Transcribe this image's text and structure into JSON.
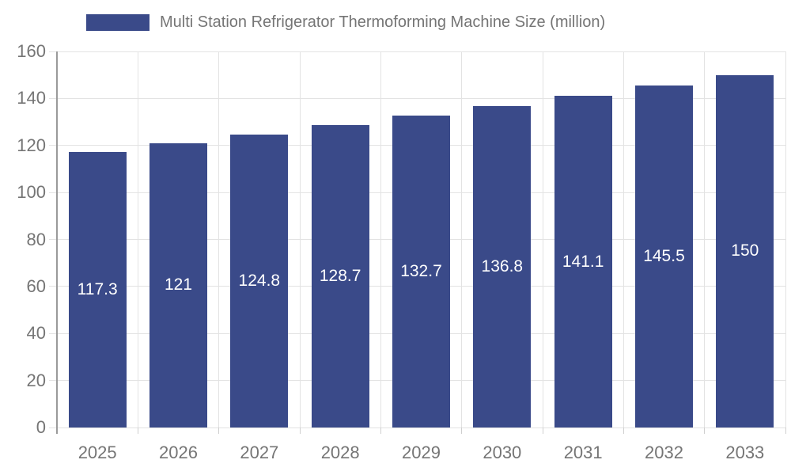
{
  "legend": {
    "label": "Multi Station Refrigerator Thermoforming Machine Size (million)"
  },
  "chart_data": {
    "type": "bar",
    "title": "Multi Station Refrigerator Thermoforming Machine Size (million)",
    "categories": [
      "2025",
      "2026",
      "2027",
      "2028",
      "2029",
      "2030",
      "2031",
      "2032",
      "2033"
    ],
    "values": [
      117.3,
      121,
      124.8,
      128.7,
      132.7,
      136.8,
      141.1,
      145.5,
      150
    ],
    "value_labels": [
      "117.3",
      "121",
      "124.8",
      "128.7",
      "132.7",
      "136.8",
      "141.1",
      "145.5",
      "150"
    ],
    "xlabel": "",
    "ylabel": "",
    "ylim": [
      0,
      160
    ],
    "yticks": [
      0,
      20,
      40,
      60,
      80,
      100,
      120,
      140,
      160
    ],
    "grid": true,
    "legend_position": "top-left",
    "bar_color": "#3a4a89",
    "value_label_color": "#ffffff",
    "axis_text_color": "#757575",
    "grid_color": "#e3e3e3",
    "axis_line_color": "#9a9a9a"
  }
}
